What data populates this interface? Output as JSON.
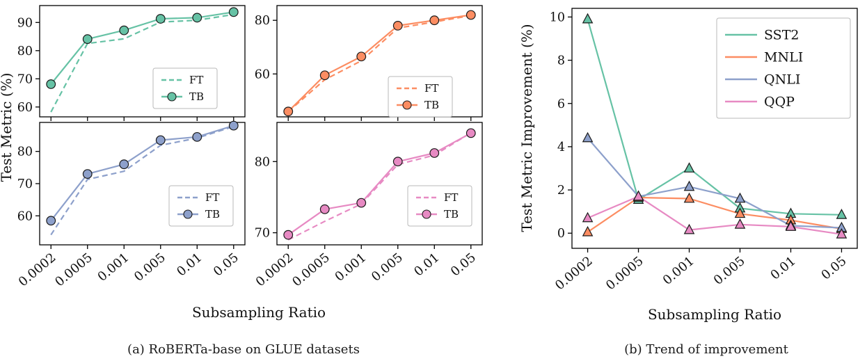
{
  "figure": {
    "caption_a": "(a) RoBERTa-base on GLUE datasets",
    "caption_b": "(b) Trend of improvement"
  },
  "chart_data": [
    {
      "id": "glue-subplots",
      "type": "line",
      "xlabel": "Subsampling Ratio",
      "ylabel": "Test Metric (%)",
      "categories": [
        "0.0002",
        "0.0005",
        "0.001",
        "0.005",
        "0.01",
        "0.05"
      ],
      "legend_labels": [
        "FT",
        "TB"
      ],
      "subplots": [
        {
          "dataset": "SST2",
          "color": "#66c2a5",
          "yticks": [
            60,
            70,
            80,
            90
          ],
          "ylim": [
            56.5,
            96
          ],
          "series": [
            {
              "name": "FT",
              "style": "dashed",
              "values": [
                58.2,
                82.55,
                84.2,
                90.15,
                90.8,
                92.85
              ]
            },
            {
              "name": "TB",
              "style": "solid",
              "marker": "circle",
              "values": [
                68.1,
                84.1,
                87.2,
                91.3,
                91.7,
                93.7
              ]
            }
          ]
        },
        {
          "dataset": "MNLI",
          "color": "#fc8d62",
          "yticks": [
            60,
            80
          ],
          "ylim": [
            44,
            85.5
          ],
          "series": [
            {
              "name": "FT",
              "style": "dashed",
              "values": [
                45.95,
                57.85,
                64.9,
                77.1,
                79.4,
                81.8
              ]
            },
            {
              "name": "TB",
              "style": "solid",
              "marker": "circle",
              "values": [
                46.0,
                59.5,
                66.5,
                78.0,
                80.0,
                82.0
              ]
            }
          ]
        },
        {
          "dataset": "QNLI",
          "color": "#8da0cb",
          "yticks": [
            60,
            70,
            80
          ],
          "ylim": [
            51,
            89
          ],
          "series": [
            {
              "name": "FT",
              "style": "dashed",
              "values": [
                54.1,
                71.3,
                73.85,
                81.9,
                84.15,
                87.75
              ]
            },
            {
              "name": "TB",
              "style": "solid",
              "marker": "circle",
              "values": [
                58.5,
                73.0,
                76.0,
                83.5,
                84.5,
                88.0
              ]
            }
          ]
        },
        {
          "dataset": "QQP",
          "color": "#e78ac3",
          "yticks": [
            70,
            80
          ],
          "ylim": [
            68.3,
            85.5
          ],
          "series": [
            {
              "name": "FT",
              "style": "dashed",
              "values": [
                69.0,
                71.6,
                74.05,
                79.6,
                80.9,
                84.05
              ]
            },
            {
              "name": "TB",
              "style": "solid",
              "marker": "circle",
              "values": [
                69.7,
                73.3,
                74.2,
                80.0,
                81.2,
                84.0
              ]
            }
          ]
        }
      ]
    },
    {
      "id": "improvement-trend",
      "type": "line",
      "xlabel": "Subsampling Ratio",
      "ylabel": "Test Metric Improvement (%)",
      "categories": [
        "0.0002",
        "0.0005",
        "0.001",
        "0.005",
        "0.01",
        "0.05"
      ],
      "yticks": [
        0,
        2,
        4,
        6,
        8,
        10
      ],
      "ylim": [
        -0.7,
        10.4
      ],
      "legend_position": "upper right",
      "series": [
        {
          "name": "SST2",
          "color": "#66c2a5",
          "marker": "triangle",
          "values": [
            9.9,
            1.55,
            3.0,
            1.15,
            0.9,
            0.85
          ]
        },
        {
          "name": "MNLI",
          "color": "#fc8d62",
          "marker": "triangle",
          "values": [
            0.05,
            1.65,
            1.6,
            0.9,
            0.6,
            0.2
          ]
        },
        {
          "name": "QNLI",
          "color": "#8da0cb",
          "marker": "triangle",
          "values": [
            4.4,
            1.7,
            2.15,
            1.6,
            0.35,
            0.25
          ]
        },
        {
          "name": "QQP",
          "color": "#e78ac3",
          "marker": "triangle",
          "values": [
            0.7,
            1.7,
            0.15,
            0.4,
            0.3,
            -0.05
          ]
        }
      ]
    }
  ]
}
